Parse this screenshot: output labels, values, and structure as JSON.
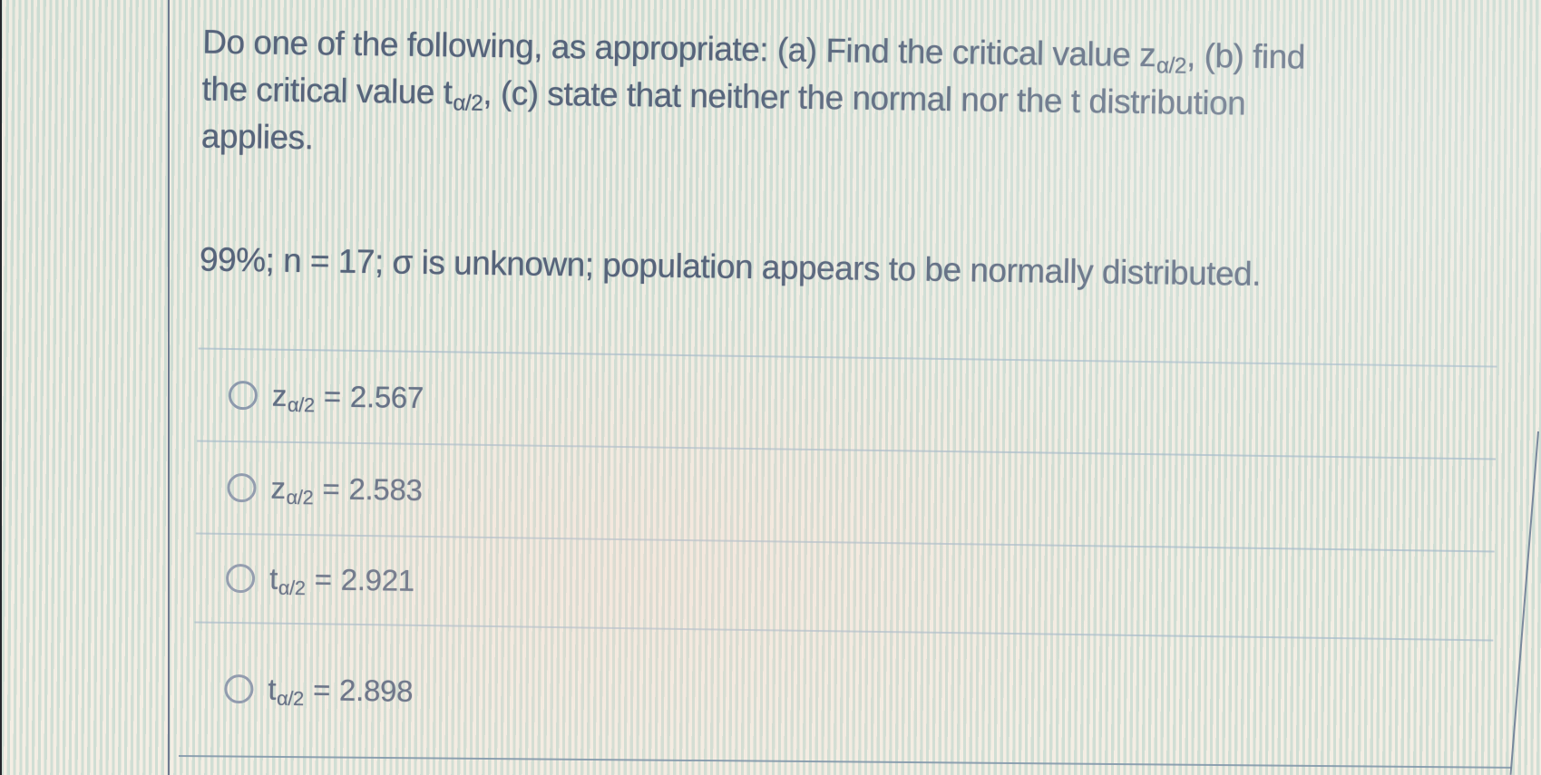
{
  "question": {
    "seg1": "Do one of the following, as appropriate: (a) Find the critical value ",
    "z_base": "z",
    "z_sub": "α/2",
    "seg2": ", (b) find",
    "seg3": "the critical value ",
    "t_base": "t",
    "t_sub": "α/2",
    "seg4": ", (c) state that neither the normal nor the t distribution",
    "seg5": "applies."
  },
  "given_conditions": "99%; n = 17; σ is unknown; population appears to be normally distributed.",
  "options": [
    {
      "base": "z",
      "sub": "α/2",
      "relation": "=",
      "value": "2.567",
      "selected": false
    },
    {
      "base": "z",
      "sub": "α/2",
      "relation": "=",
      "value": "2.583",
      "selected": false
    },
    {
      "base": "t",
      "sub": "α/2",
      "relation": "=",
      "value": "2.921",
      "selected": false
    },
    {
      "base": "t",
      "sub": "α/2",
      "relation": "=",
      "value": "2.898",
      "selected": false
    }
  ],
  "colors": {
    "question_text": "#44536e",
    "option_text": "#4e5e78",
    "divider": "#9ab2c6",
    "panel_border": "#5f6d86",
    "radio_ring": "#8290a7",
    "stripe_green": "#cbdcd2",
    "stripe_cream": "#f3eee4"
  }
}
